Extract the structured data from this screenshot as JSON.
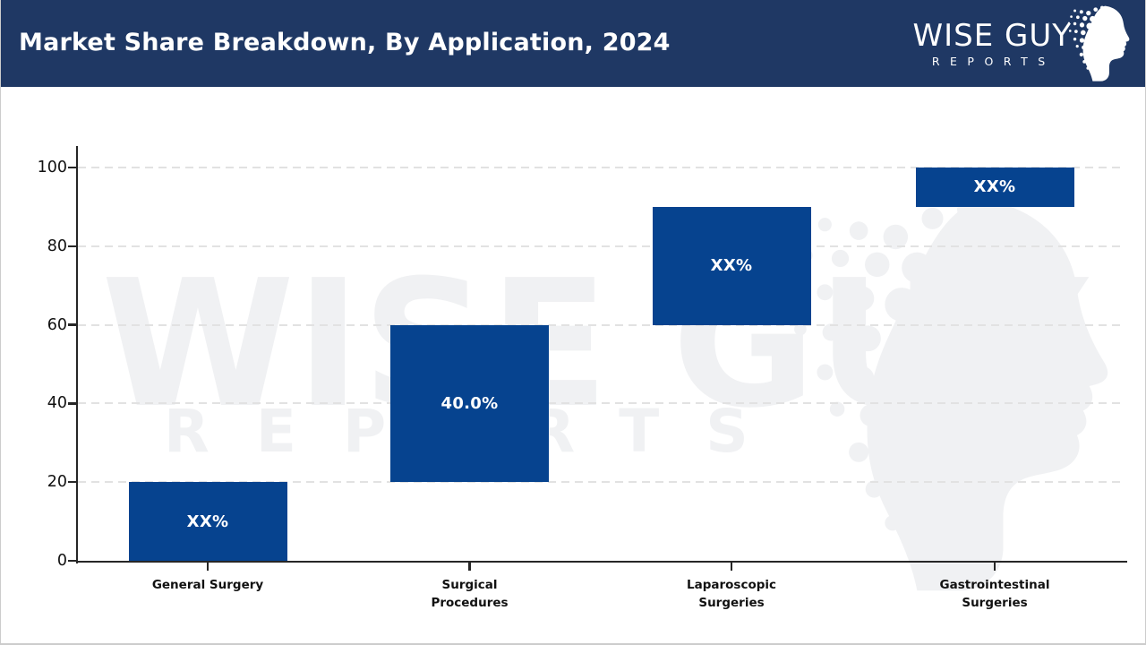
{
  "header": {
    "title": "Market Share Breakdown, By Application, 2024",
    "logo": {
      "wordmark": "WISE GUY",
      "subtext": "REPORTS"
    }
  },
  "watermark": {
    "wordmark": "WISE GUY",
    "subtext": "REPORTS"
  },
  "chart_data": {
    "type": "bar",
    "variant": "waterfall",
    "title": "Market Share Breakdown, By Application, 2024",
    "categories": [
      "General Surgery",
      "Surgical Procedures",
      "Laparoscopic Surgeries",
      "Gastrointestinal Surgeries"
    ],
    "series": [
      {
        "name": "Market share (%)",
        "segments": [
          {
            "category": "General Surgery",
            "start": 0,
            "end": 20,
            "value": 20,
            "label": "XX%"
          },
          {
            "category": "Surgical Procedures",
            "start": 20,
            "end": 60,
            "value": 40,
            "label": "40.0%"
          },
          {
            "category": "Laparoscopic Surgeries",
            "start": 60,
            "end": 90,
            "value": 30,
            "label": "XX%"
          },
          {
            "category": "Gastrointestinal Surgeries",
            "start": 90,
            "end": 100,
            "value": 10,
            "label": "XX%"
          }
        ]
      }
    ],
    "xlabel": "",
    "ylabel": "",
    "ylim": [
      0,
      100
    ],
    "yticks": [
      0,
      20,
      40,
      60,
      80,
      100
    ],
    "grid": true,
    "legend": false
  },
  "colors": {
    "header_bg": "#1F3864",
    "bar": "#06438F",
    "bar_label": "#FFFFFF",
    "watermark": "#F0F1F3",
    "gridline": "#E2E2E2",
    "axis": "#262626"
  }
}
